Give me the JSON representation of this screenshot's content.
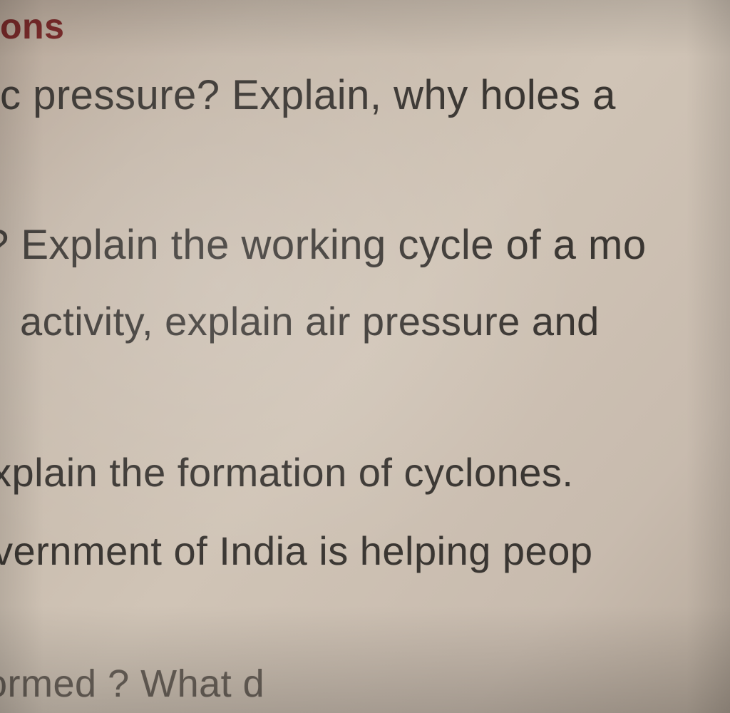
{
  "heading": "ons",
  "lines": {
    "l1": "c pressure? Explain, why holes a",
    "l2": "? Explain the working cycle of a mo",
    "l3": "activity, explain air pressure and",
    "l4": "xplain the formation of cyclones.",
    "l5": "vernment of India is helping peop",
    "l6": "ormed ? What d"
  }
}
